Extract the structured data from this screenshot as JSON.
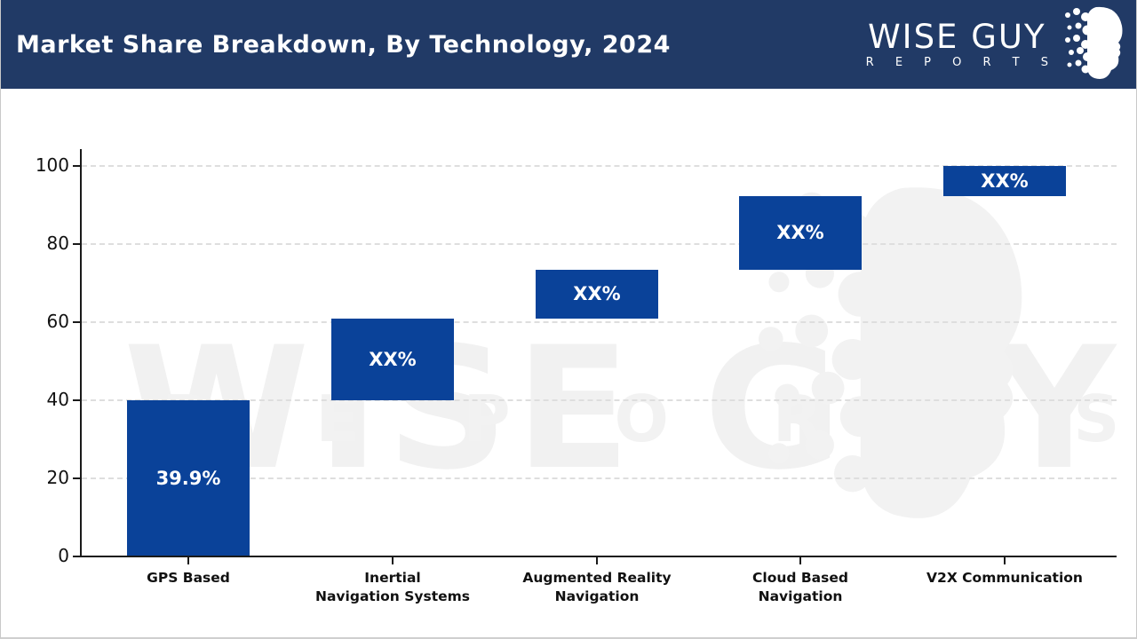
{
  "header": {
    "title": "Market Share Breakdown, By Technology, 2024",
    "bg_color": "#213a66",
    "logo": {
      "line1": "WISE GUY",
      "line2": "R E P O R T S"
    }
  },
  "watermark": {
    "line1": "WISE GUY",
    "line2": "R E P O R T S"
  },
  "chart_data": {
    "type": "bar",
    "subtype": "waterfall",
    "title": "Market Share Breakdown, By Technology, 2024",
    "categories": [
      "GPS Based",
      "Inertial\nNavigation Systems",
      "Augmented Reality\nNavigation",
      "Cloud Based\nNavigation",
      "V2X Communication"
    ],
    "values": [
      39.9,
      21.1,
      12.5,
      18.8,
      7.7
    ],
    "bar_bases": [
      0,
      39.9,
      61.0,
      73.5,
      92.3
    ],
    "bar_labels": [
      "39.9%",
      "XX%",
      "XX%",
      "XX%",
      "XX%"
    ],
    "xlabel": "",
    "ylabel": "",
    "ylim": [
      0,
      104
    ],
    "yticks": [
      0,
      20,
      40,
      60,
      80,
      100
    ],
    "grid": "horizontal-dashed",
    "legend": "none",
    "bar_color": "#0a4299",
    "bar_label_color": "#ffffff",
    "gridline_color": "#dedede",
    "axis_color": "#1a1a1a"
  }
}
